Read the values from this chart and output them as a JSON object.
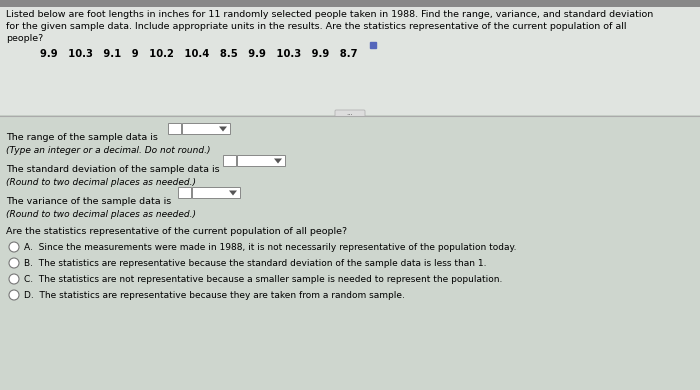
{
  "background_color": "#c8d0c8",
  "top_bg": "#e0e4e0",
  "bottom_bg": "#ced6ce",
  "question_text_line1": "Listed below are foot lengths in inches for 11 randomly selected people taken in 1988. Find the range, variance, and standard deviation",
  "question_text_line2": "for the given sample data. Include appropriate units in the results. Are the statistics representative of the current population of all",
  "question_text_line3": "people?",
  "data_values": "9.9   10.3   9.1   9   10.2   10.4   8.5   9.9   10.3   9.9   8.7",
  "q1_label": "The range of the sample data is",
  "q1_note": "(Type an integer or a decimal. Do not round.)",
  "q2_label": "The standard deviation of the sample data is",
  "q2_note": "(Round to two decimal places as needed.)",
  "q3_label": "The variance of the sample data is",
  "q3_note": "(Round to two decimal places as needed.)",
  "q4_label": "Are the statistics representative of the current population of all people?",
  "option_A": "A.  Since the measurements were made in 1988, it is not necessarily representative of the population today.",
  "option_B": "B.  The statistics are representative because the standard deviation of the sample data is less than 1.",
  "option_C": "C.  The statistics are not representative because a smaller sample is needed to represent the population.",
  "option_D": "D.  The statistics are representative because they are taken from a random sample.",
  "font_size_question": 6.8,
  "font_size_data": 7.2,
  "font_size_body": 6.8,
  "font_size_note": 6.5,
  "font_size_options": 6.5
}
